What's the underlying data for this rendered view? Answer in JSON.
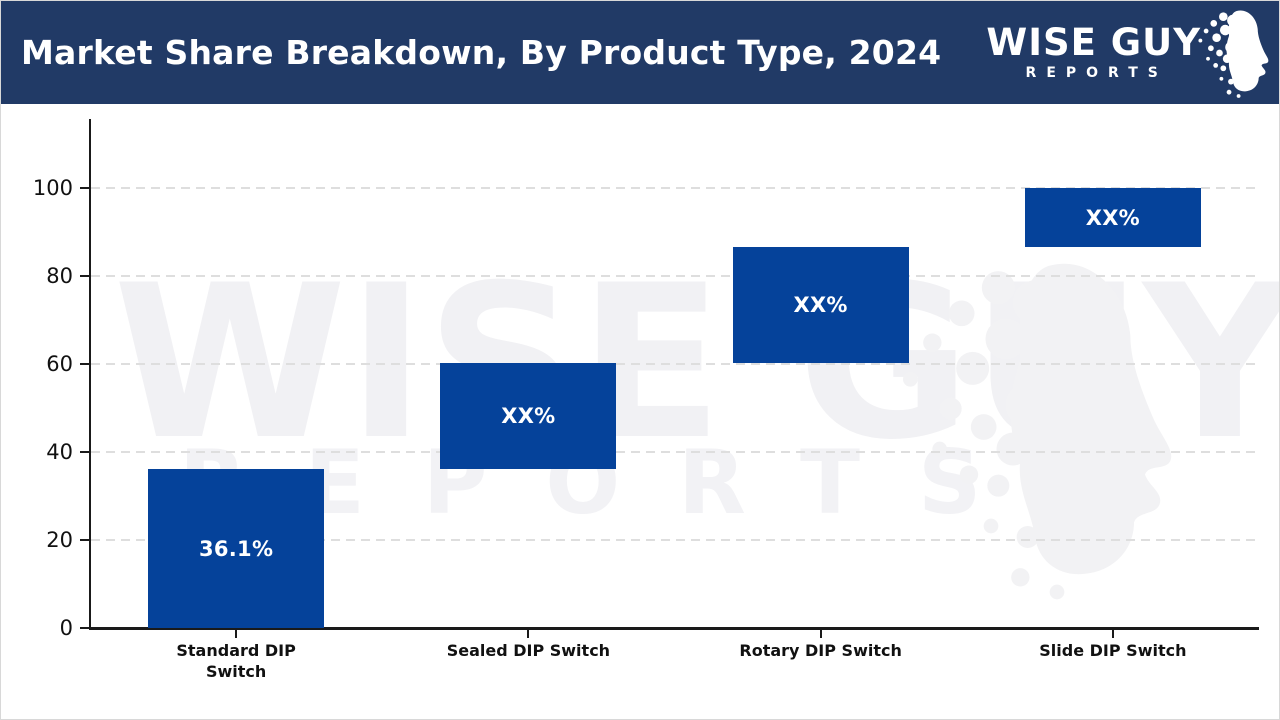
{
  "page": {
    "background": "#ffffff",
    "border_color": "#d8d8d8"
  },
  "header": {
    "title": "Market Share Breakdown, By Product Type, 2024",
    "bg_color": "#213a66",
    "logo": {
      "name": "WISE GUY",
      "subtitle": "REPORTS",
      "head_icon": "dotted-face-profile"
    }
  },
  "watermark": {
    "line1": "WISE GUY",
    "line2": "REPORTS"
  },
  "chart_data": {
    "type": "bar",
    "subtype": "waterfall",
    "title": "Market Share Breakdown, By Product Type, 2024",
    "categories": [
      "Standard DIP\nSwitch",
      "Sealed DIP Switch",
      "Rotary DIP Switch",
      "Slide DIP Switch"
    ],
    "segments": [
      {
        "name": "Standard DIP Switch",
        "start": 0,
        "end": 36.1,
        "label": "36.1%"
      },
      {
        "name": "Sealed DIP Switch",
        "start": 36.1,
        "end": 60.2,
        "label": "XX%"
      },
      {
        "name": "Rotary DIP Switch",
        "start": 60.2,
        "end": 86.5,
        "label": "XX%"
      },
      {
        "name": "Slide DIP Switch",
        "start": 86.5,
        "end": 100,
        "label": "XX%"
      }
    ],
    "yticks": [
      0,
      20,
      40,
      60,
      80,
      100
    ],
    "ylim": [
      0,
      105
    ],
    "xlabel": "",
    "ylabel": "",
    "grid": "horizontal-dashed",
    "legend": "none",
    "bar_color": "#05429a",
    "bar_label_color": "#ffffff",
    "axis_color": "#1a1a1a"
  }
}
